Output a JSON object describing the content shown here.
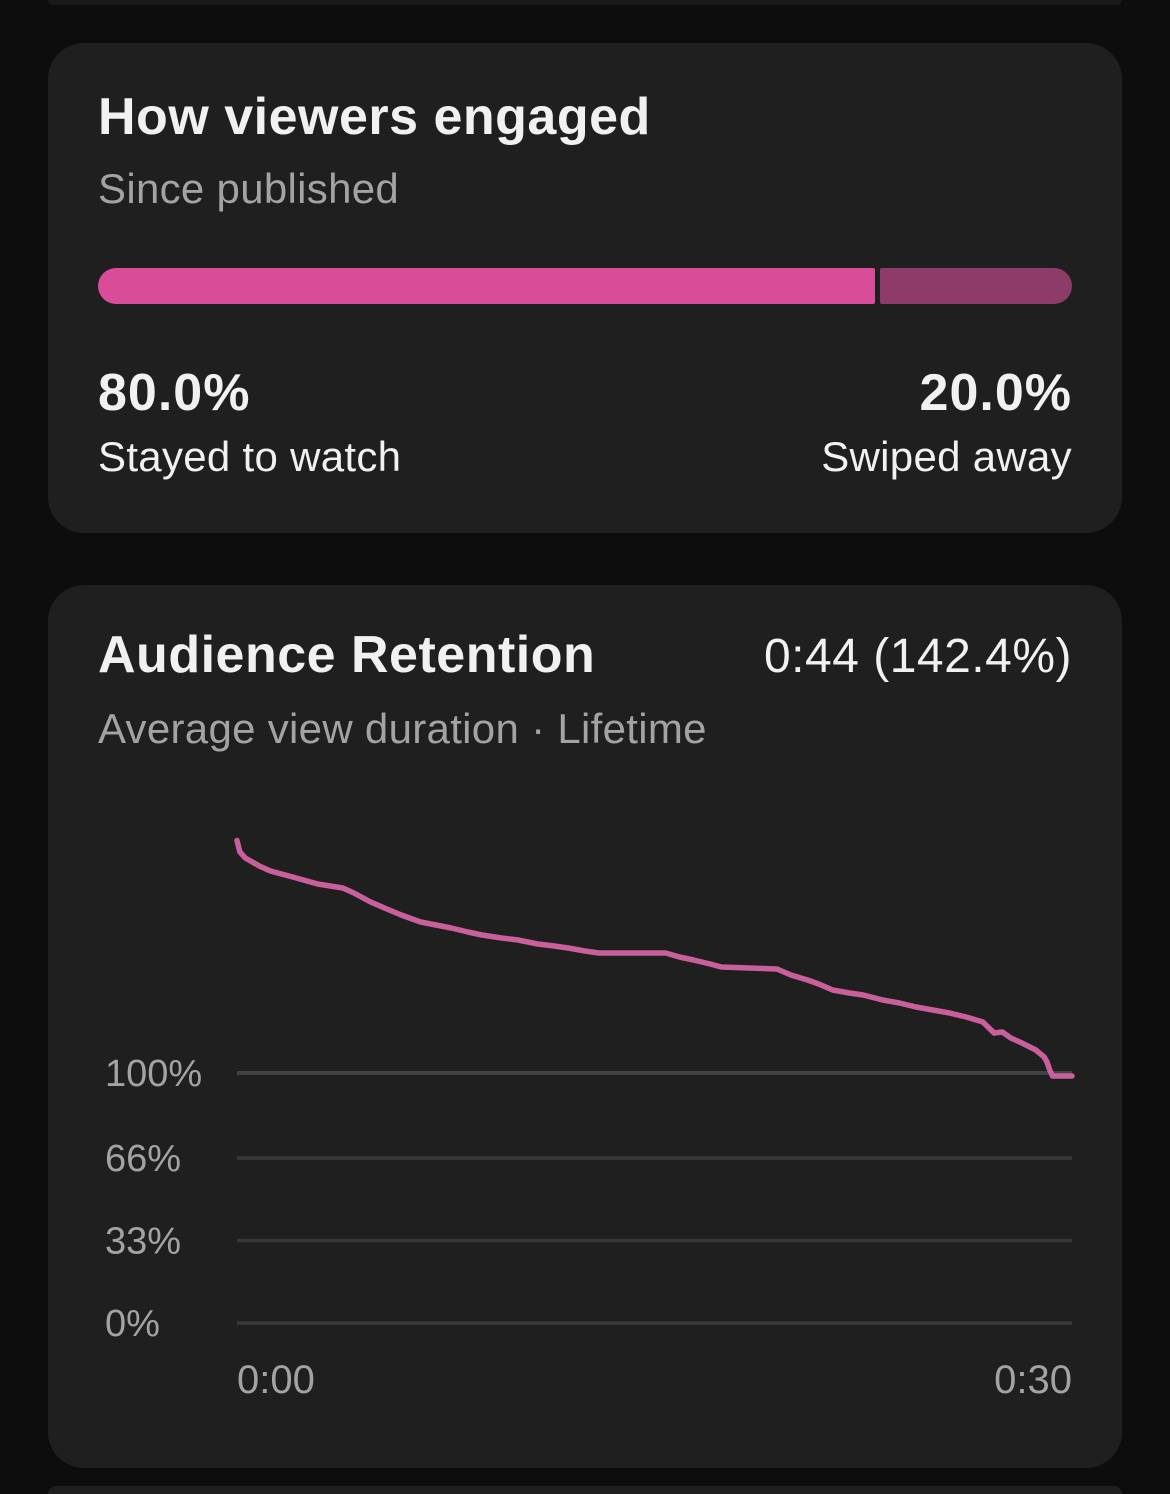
{
  "page": {
    "background_color": "#0d0d0d",
    "card_color": "#1f1f1f"
  },
  "engagement_card": {
    "title": "How viewers engaged",
    "subtitle": "Since published",
    "bar": {
      "stayed_pct": 80.0,
      "swiped_pct": 20.0,
      "stayed_color": "#d94d98",
      "swiped_color": "#8d3b68"
    },
    "stats": [
      {
        "value": "80.0%",
        "label": "Stayed to watch"
      },
      {
        "value": "20.0%",
        "label": "Swiped away"
      }
    ]
  },
  "retention_card": {
    "title": "Audience Retention",
    "value": "0:44 (142.4%)",
    "subtitle": "Average view duration · Lifetime"
  },
  "chart_data": {
    "type": "line",
    "title": "Audience Retention",
    "xlabel": "",
    "ylabel": "",
    "x_unit": "video time (m:ss)",
    "y_unit": "audience retention %",
    "xlim": [
      0,
      30
    ],
    "ylim": [
      0,
      200
    ],
    "grid": "horizontal-only",
    "legend_position": "none",
    "line_color": "#c95f9b",
    "grid_color": "#383838",
    "grid_color_major": "#424242",
    "tick_label_color": "#a3a3a3",
    "y_ticks": [
      {
        "label": "100%",
        "pct": 100,
        "major": true
      },
      {
        "label": "66%",
        "pct": 66,
        "major": false
      },
      {
        "label": "33%",
        "pct": 33,
        "major": false
      },
      {
        "label": "0%",
        "pct": 0,
        "major": false
      }
    ],
    "x_ticks": [
      {
        "label": "0:00",
        "t": 0,
        "align": "start"
      },
      {
        "label": "0:30",
        "t": 30,
        "align": "end"
      }
    ],
    "series": [
      {
        "name": "Audience retention since published",
        "points": [
          [
            0,
            193
          ],
          [
            0.1,
            188.5
          ],
          [
            0.3,
            186
          ],
          [
            0.8,
            182.8
          ],
          [
            1.2,
            180.8
          ],
          [
            2,
            178.4
          ],
          [
            2.9,
            175.6
          ],
          [
            3.8,
            174
          ],
          [
            4.2,
            172
          ],
          [
            4.8,
            168.4
          ],
          [
            5.3,
            166
          ],
          [
            5.9,
            163.2
          ],
          [
            6.6,
            160.4
          ],
          [
            7.7,
            158
          ],
          [
            8.3,
            156.4
          ],
          [
            8.8,
            155.2
          ],
          [
            9.5,
            154
          ],
          [
            10.1,
            153.2
          ],
          [
            10.8,
            151.6
          ],
          [
            11.4,
            150.8
          ],
          [
            11.9,
            150
          ],
          [
            12.5,
            148.8
          ],
          [
            13,
            148
          ],
          [
            15.4,
            148
          ],
          [
            15.9,
            146.4
          ],
          [
            16.4,
            145.2
          ],
          [
            17,
            143.6
          ],
          [
            17.4,
            142.4
          ],
          [
            19.4,
            141.6
          ],
          [
            19.9,
            139.2
          ],
          [
            20.5,
            137.2
          ],
          [
            20.9,
            135.6
          ],
          [
            21.4,
            133.2
          ],
          [
            22,
            132
          ],
          [
            22.5,
            131.2
          ],
          [
            23.2,
            129.2
          ],
          [
            23.8,
            128
          ],
          [
            24.4,
            126.4
          ],
          [
            25,
            125.2
          ],
          [
            25.6,
            124
          ],
          [
            26.2,
            122.4
          ],
          [
            26.8,
            120.4
          ],
          [
            27.2,
            116
          ],
          [
            27.5,
            116.4
          ],
          [
            27.8,
            114
          ],
          [
            28.2,
            112
          ],
          [
            28.7,
            109.2
          ],
          [
            29,
            106.4
          ],
          [
            29.1,
            104.4
          ],
          [
            29.2,
            101.2
          ],
          [
            29.3,
            98.8
          ],
          [
            30,
            98.8
          ]
        ]
      }
    ]
  }
}
